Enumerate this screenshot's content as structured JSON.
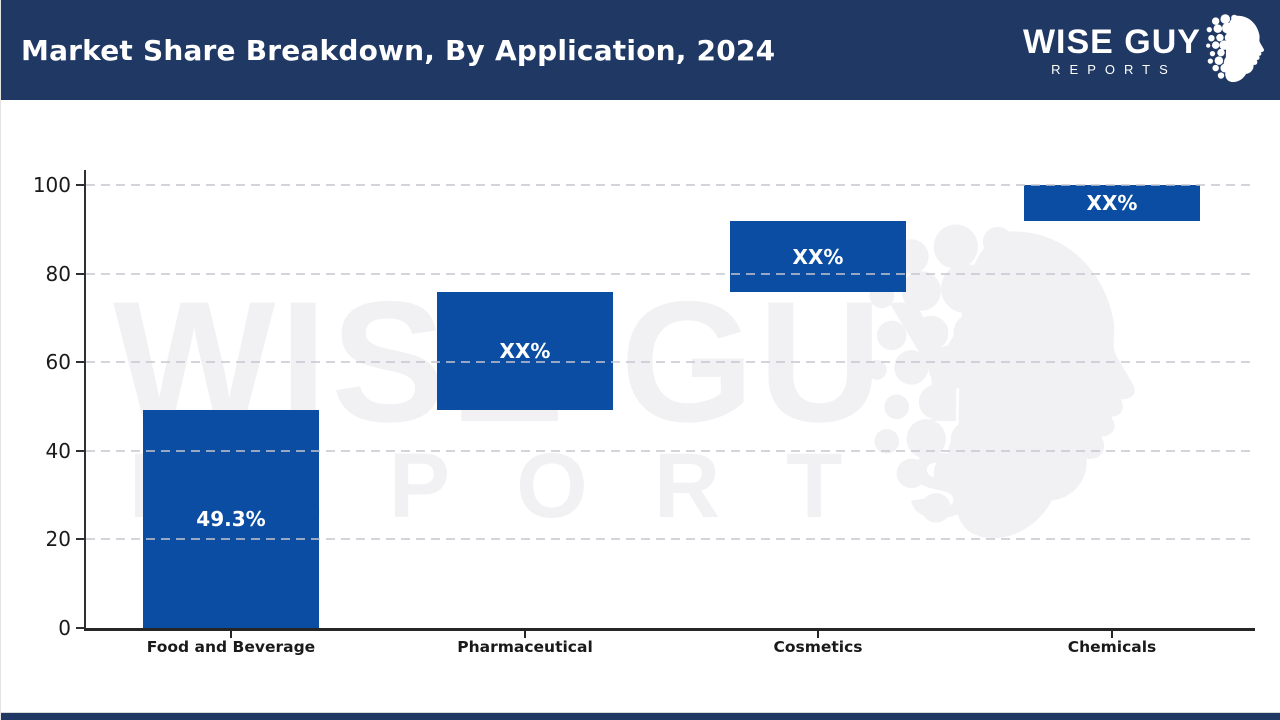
{
  "header": {
    "title": "Market Share Breakdown, By Application, 2024",
    "bg_color": "#1f3864",
    "logo": {
      "line1": "WISE GUY",
      "line2": "REPORTS"
    }
  },
  "watermark": {
    "line1": "WISE GUY",
    "line2": "REPORTS"
  },
  "footer": {
    "bg_color": "#1f3864"
  },
  "chart_data": {
    "type": "bar",
    "subtype": "waterfall",
    "title": "Market Share Breakdown, By Application, 2024",
    "categories": [
      "Food and Beverage",
      "Pharmaceutical",
      "Cosmetics",
      "Chemicals"
    ],
    "series": [
      {
        "name": "Market Share (%)",
        "segments": [
          {
            "category": "Food and Beverage",
            "start": 0,
            "end": 49.3,
            "label": "49.3%"
          },
          {
            "category": "Pharmaceutical",
            "start": 49.3,
            "end": 75.8,
            "label": "XX%"
          },
          {
            "category": "Cosmetics",
            "start": 75.8,
            "end": 91.9,
            "label": "XX%"
          },
          {
            "category": "Chemicals",
            "start": 91.9,
            "end": 100,
            "label": "XX%"
          }
        ]
      }
    ],
    "xlabel": "",
    "ylabel": "",
    "ylim": [
      0,
      104
    ],
    "yticks": [
      0,
      20,
      40,
      60,
      80,
      100
    ],
    "grid": "dashed-horizontal",
    "gridline_color": "#d9d9d9",
    "bar_color": "#0b4da2",
    "bar_label_color": "#ffffff",
    "legend": "none"
  }
}
